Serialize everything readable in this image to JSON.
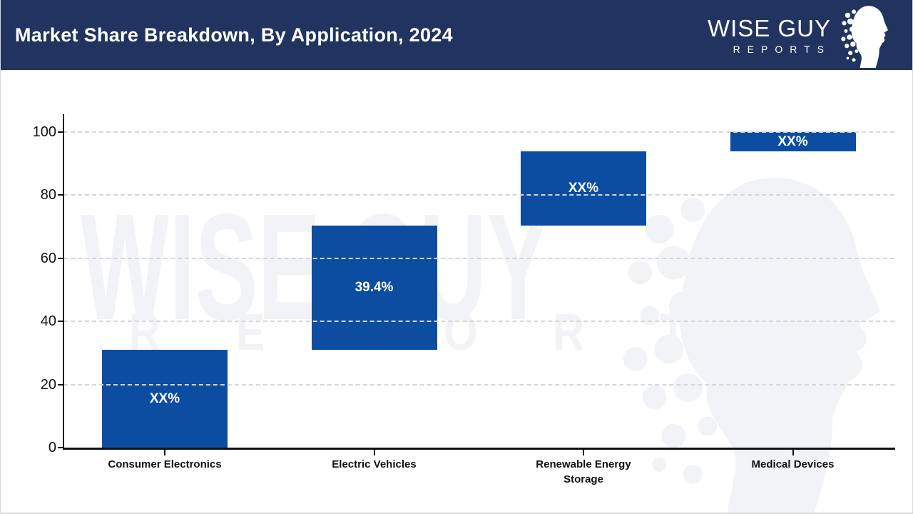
{
  "header": {
    "title": "Market Share Breakdown, By Application, 2024",
    "brand_line1": "WISE GUY",
    "brand_line2": "REPORTS",
    "bg_color": "#21345f"
  },
  "watermark": {
    "line1": "WISE GUY",
    "line2": "R E P O R T S"
  },
  "chart_data": {
    "type": "bar",
    "subtype": "waterfall",
    "title": "Market Share Breakdown, By Application, 2024",
    "categories": [
      "Consumer Electronics",
      "Electric Vehicles",
      "Renewable Energy Storage",
      "Medical Devices"
    ],
    "series": [
      {
        "name": "Market Share",
        "segments": [
          {
            "category": "Consumer Electronics",
            "start": 0,
            "end": 31,
            "label": "XX%"
          },
          {
            "category": "Electric Vehicles",
            "start": 31,
            "end": 70.4,
            "label": "39.4%"
          },
          {
            "category": "Renewable Energy Storage",
            "start": 70.4,
            "end": 94,
            "label": "XX%"
          },
          {
            "category": "Medical Devices",
            "start": 94,
            "end": 100,
            "label": "XX%"
          }
        ]
      }
    ],
    "xlabel": "",
    "ylabel": "",
    "yticks": [
      0,
      20,
      40,
      60,
      80,
      100
    ],
    "ylim": [
      0,
      105
    ],
    "grid": "horizontal-dashed",
    "legend": "none",
    "bar_color": "#0c4da2",
    "grid_color": "#d6d6d6",
    "axis_color": "#111111"
  }
}
